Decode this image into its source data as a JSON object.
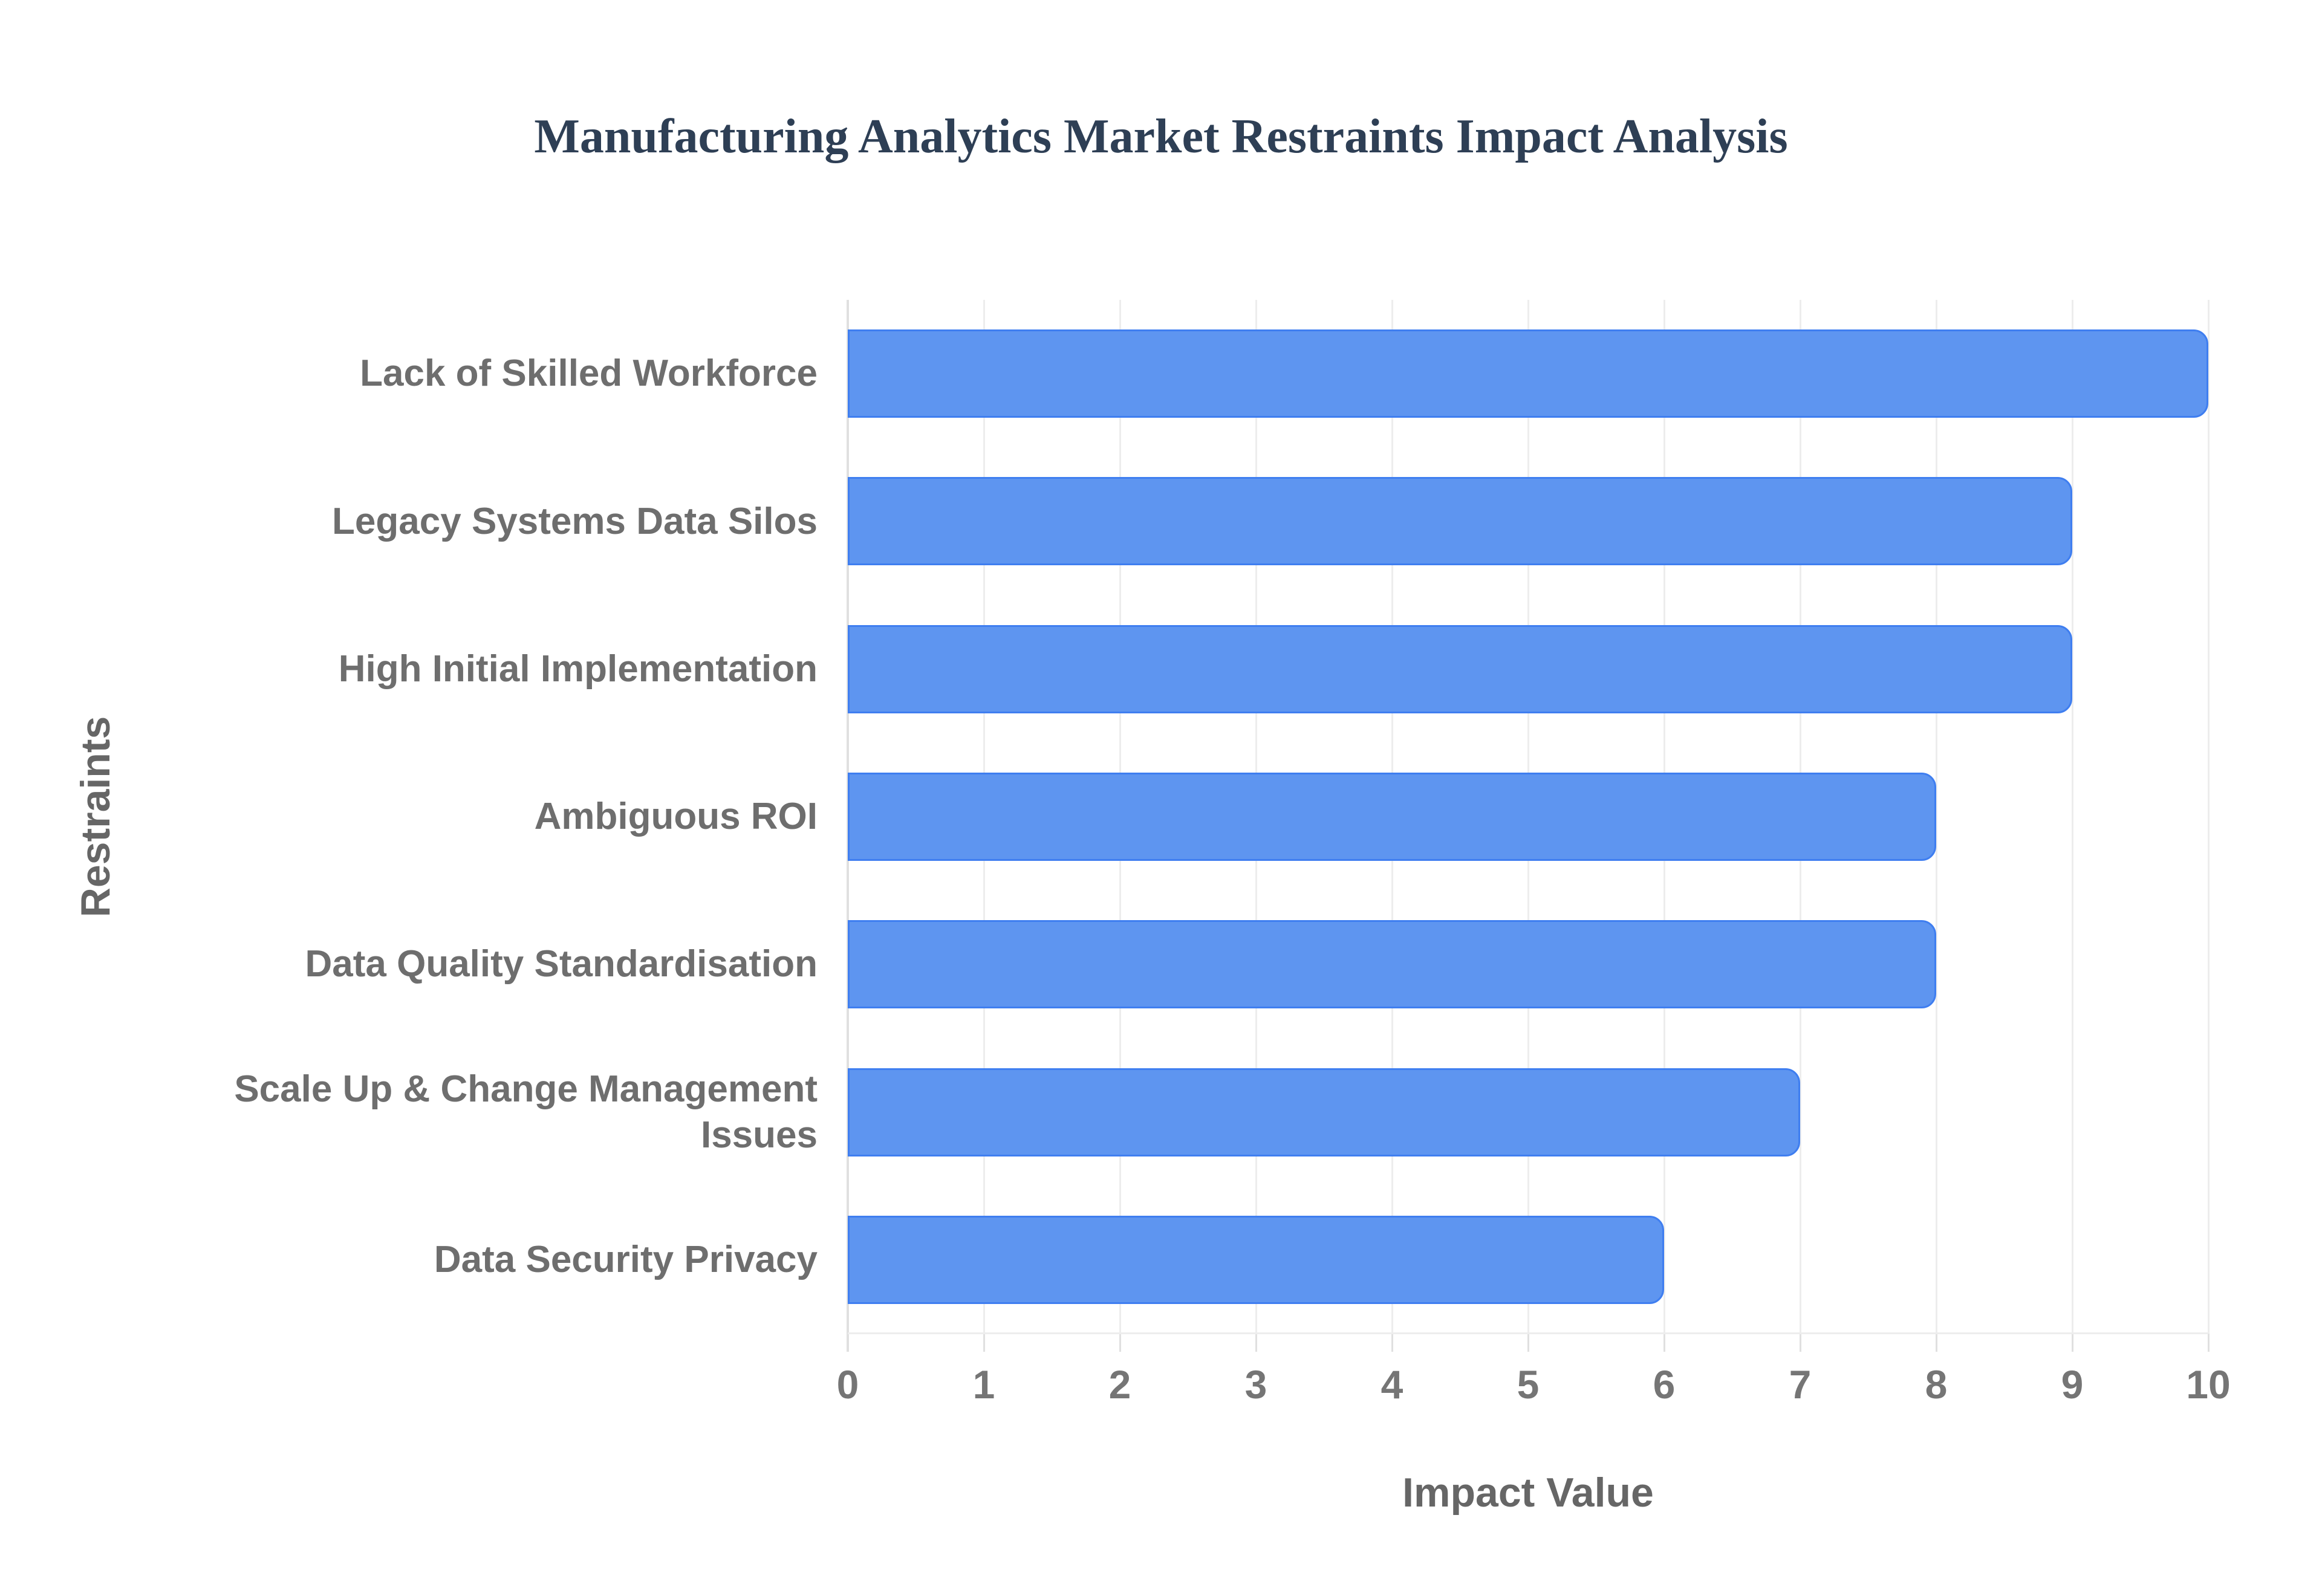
{
  "chart_data": {
    "type": "bar",
    "orientation": "horizontal",
    "title": "Manufacturing Analytics Market Restraints Impact Analysis",
    "categories": [
      "Lack of Skilled Workforce",
      "Legacy Systems Data Silos",
      "High Initial Implementation",
      "Ambiguous ROI",
      "Data Quality Standardisation",
      "Scale Up & Change Management Issues",
      "Data Security Privacy"
    ],
    "values": [
      10,
      9,
      9,
      8,
      8,
      7,
      6
    ],
    "xlabel": "Impact Value",
    "ylabel": "Restraints",
    "xlim": [
      0,
      10
    ],
    "xticks": [
      0,
      1,
      2,
      3,
      4,
      5,
      6,
      7,
      8,
      9,
      10
    ],
    "grid": true,
    "legend": false,
    "colors": {
      "bar_fill": "#5e95f0",
      "bar_border": "#3f7ef0",
      "title_text": "#2e3f55",
      "category_text": "#6e6e6e",
      "tick_text": "#757575",
      "axis_title_text": "#666666",
      "gridline": "#ededed",
      "axis_line": "#e0e0e0",
      "background": "#ffffff"
    }
  }
}
